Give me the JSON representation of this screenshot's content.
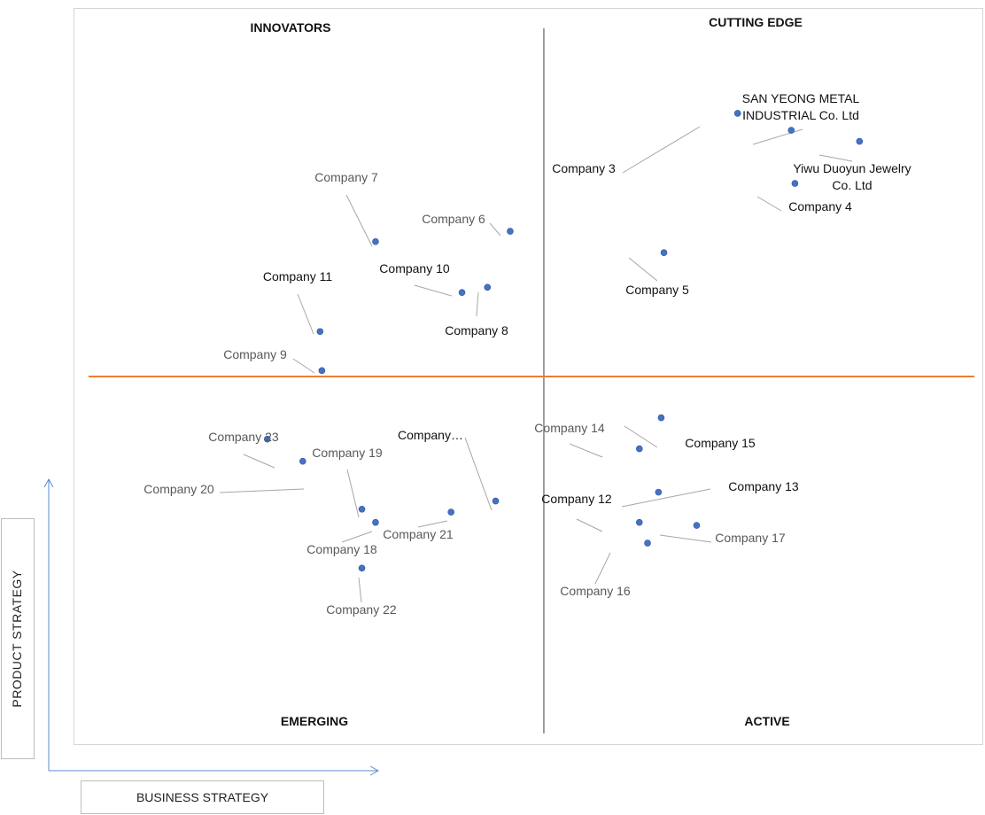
{
  "chart_data": {
    "type": "scatter",
    "title": "",
    "xlabel": "BUSINESS STRATEGY",
    "ylabel": "PRODUCT STRATEGY",
    "xlim": [
      0,
      100
    ],
    "ylim": [
      0,
      100
    ],
    "grid": false,
    "dividers": {
      "x": 51.7,
      "y": 50.0,
      "vertical_color": "#808080",
      "horizontal_color": "#ed7d31"
    },
    "quadrants": {
      "top_left": "INNOVATORS",
      "top_right": "CUTTING EDGE",
      "bottom_left": "EMERGING",
      "bottom_right": "ACTIVE"
    },
    "point_color": "#4472c4",
    "leader_color": "#a6a6a6",
    "points": [
      {
        "name": "SAN YEONG METAL\nINDUSTRIAL Co. Ltd",
        "x": 78.9,
        "y": 83.4,
        "dark": true
      },
      {
        "name": "Yiwu Duoyun Jewelry\nCo. Ltd",
        "x": 86.4,
        "y": 81.9,
        "dark": true
      },
      {
        "name": "Company 3",
        "x": 73.0,
        "y": 85.7,
        "dark": true
      },
      {
        "name": "Company 4",
        "x": 79.3,
        "y": 76.2,
        "dark": true
      },
      {
        "name": "Company 5",
        "x": 64.9,
        "y": 66.8,
        "dark": true
      },
      {
        "name": "Company 6",
        "x": 48.0,
        "y": 69.7,
        "dark": false
      },
      {
        "name": "Company 7",
        "x": 33.2,
        "y": 68.3,
        "dark": false
      },
      {
        "name": "Company 8",
        "x": 45.5,
        "y": 62.1,
        "dark": true
      },
      {
        "name": "Company 9",
        "x": 27.3,
        "y": 50.8,
        "dark": false
      },
      {
        "name": "Company 10",
        "x": 42.7,
        "y": 61.4,
        "dark": true
      },
      {
        "name": "Company 11",
        "x": 27.1,
        "y": 56.1,
        "dark": true
      },
      {
        "name": "Company 12",
        "x": 62.2,
        "y": 30.2,
        "dark": true
      },
      {
        "name": "Company 13",
        "x": 64.3,
        "y": 34.3,
        "dark": true
      },
      {
        "name": "Company 14",
        "x": 62.2,
        "y": 40.2,
        "dark": false
      },
      {
        "name": "Company 15",
        "x": 64.6,
        "y": 44.4,
        "dark": true
      },
      {
        "name": "Company 16",
        "x": 63.1,
        "y": 27.4,
        "dark": false
      },
      {
        "name": "Company 17",
        "x": 68.5,
        "y": 29.8,
        "dark": false
      },
      {
        "name": "Company 18",
        "x": 33.2,
        "y": 30.2,
        "dark": false
      },
      {
        "name": "Company 19",
        "x": 31.7,
        "y": 32.0,
        "dark": false
      },
      {
        "name": "Company 20",
        "x": 25.2,
        "y": 38.5,
        "dark": false
      },
      {
        "name": "Company 21",
        "x": 41.5,
        "y": 31.6,
        "dark": false
      },
      {
        "name": "Company 22",
        "x": 31.7,
        "y": 24.0,
        "dark": false
      },
      {
        "name": "Company 23",
        "x": 21.3,
        "y": 41.5,
        "dark": false
      },
      {
        "name": "Company…",
        "x": 46.4,
        "y": 33.1,
        "dark": true
      }
    ]
  }
}
